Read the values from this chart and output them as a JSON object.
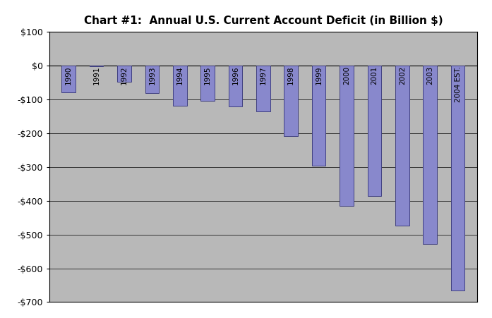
{
  "title": "Chart #1:  Annual U.S. Current Account Deficit (in Billion $)",
  "categories": [
    "1990",
    "1991",
    "1992",
    "1993",
    "1994",
    "1995",
    "1996",
    "1997",
    "1998",
    "1999",
    "2000",
    "2001",
    "2002",
    "2003",
    "2004 EST."
  ],
  "values": [
    -79,
    -3,
    -48,
    -82,
    -118,
    -105,
    -120,
    -136,
    -209,
    -296,
    -415,
    -385,
    -474,
    -527,
    -665
  ],
  "bar_color": "#8888cc",
  "bar_edge_color": "#404080",
  "fig_bg_color": "#ffffff",
  "plot_bg_color": "#b8b8b8",
  "ylim": [
    -700,
    100
  ],
  "yticks": [
    100,
    0,
    -100,
    -200,
    -300,
    -400,
    -500,
    -600,
    -700
  ],
  "ytick_labels": [
    "$100",
    "$0",
    "-$100",
    "-$200",
    "-$300",
    "-$400",
    "-$500",
    "-$600",
    "-$700"
  ],
  "title_fontsize": 11,
  "tick_fontsize": 9,
  "bar_label_fontsize": 7.5,
  "bar_width": 0.5
}
